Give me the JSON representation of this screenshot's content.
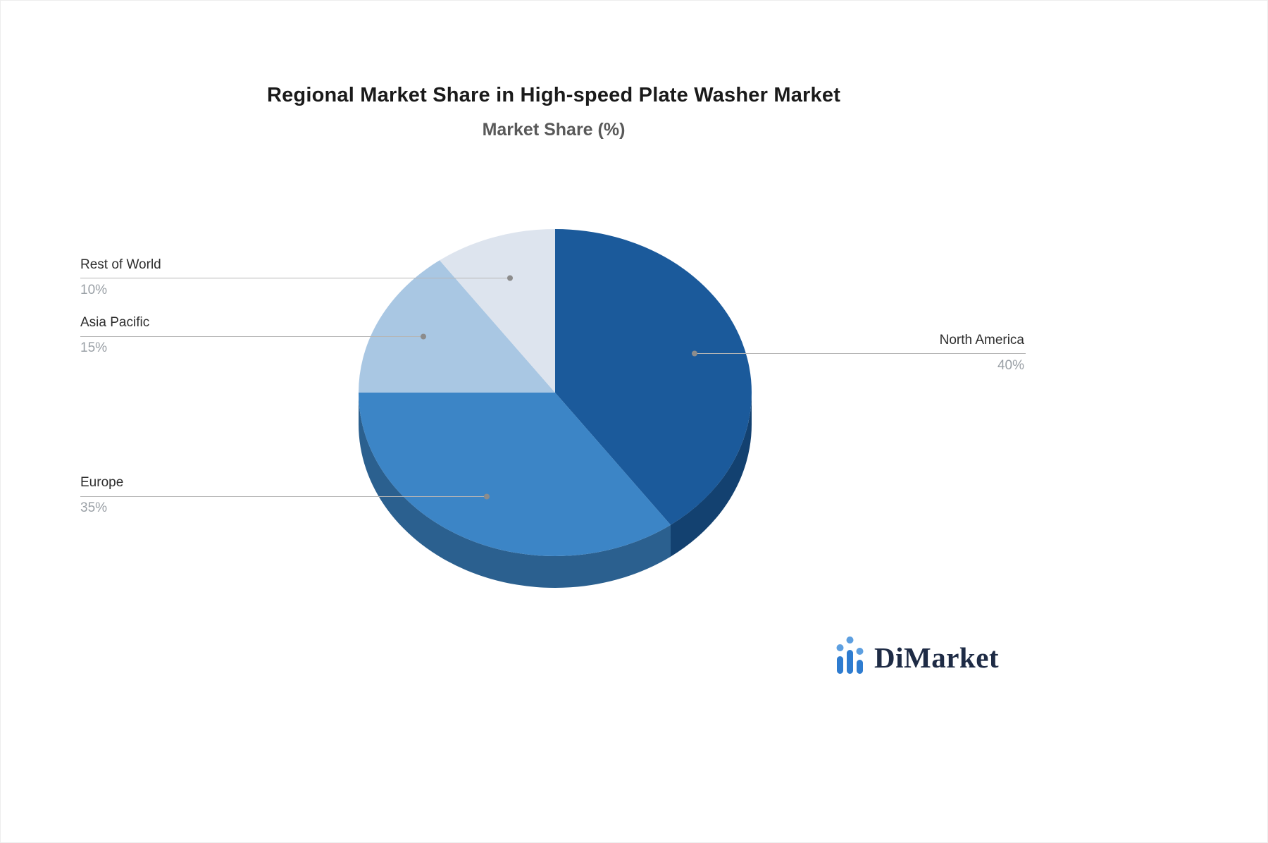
{
  "chart_data": {
    "type": "pie",
    "title": "Regional Market Share in High-speed Plate Washer Market",
    "subtitle": "Market Share (%)",
    "categories": [
      "North America",
      "Europe",
      "Asia Pacific",
      "Rest of World"
    ],
    "values": [
      40,
      35,
      15,
      10
    ],
    "unit": "%",
    "legend_position": "none",
    "style": "3d-pie, labels with leader lines",
    "slices": [
      {
        "name": "North America",
        "value": 40,
        "label": "40%",
        "color": "#1b5a9b"
      },
      {
        "name": "Europe",
        "value": 35,
        "label": "35%",
        "color": "#3c85c6"
      },
      {
        "name": "Asia Pacific",
        "value": 15,
        "label": "15%",
        "color": "#a9c7e3"
      },
      {
        "name": "Rest of World",
        "value": 10,
        "label": "10%",
        "color": "#dde4ee"
      }
    ]
  },
  "branding": {
    "logo_text": "DiMarket",
    "logo_text_color": "#1e2b45",
    "logo_icon_color": "#2e7cd0",
    "logo_icon_dot_color": "#5d9fe0"
  }
}
